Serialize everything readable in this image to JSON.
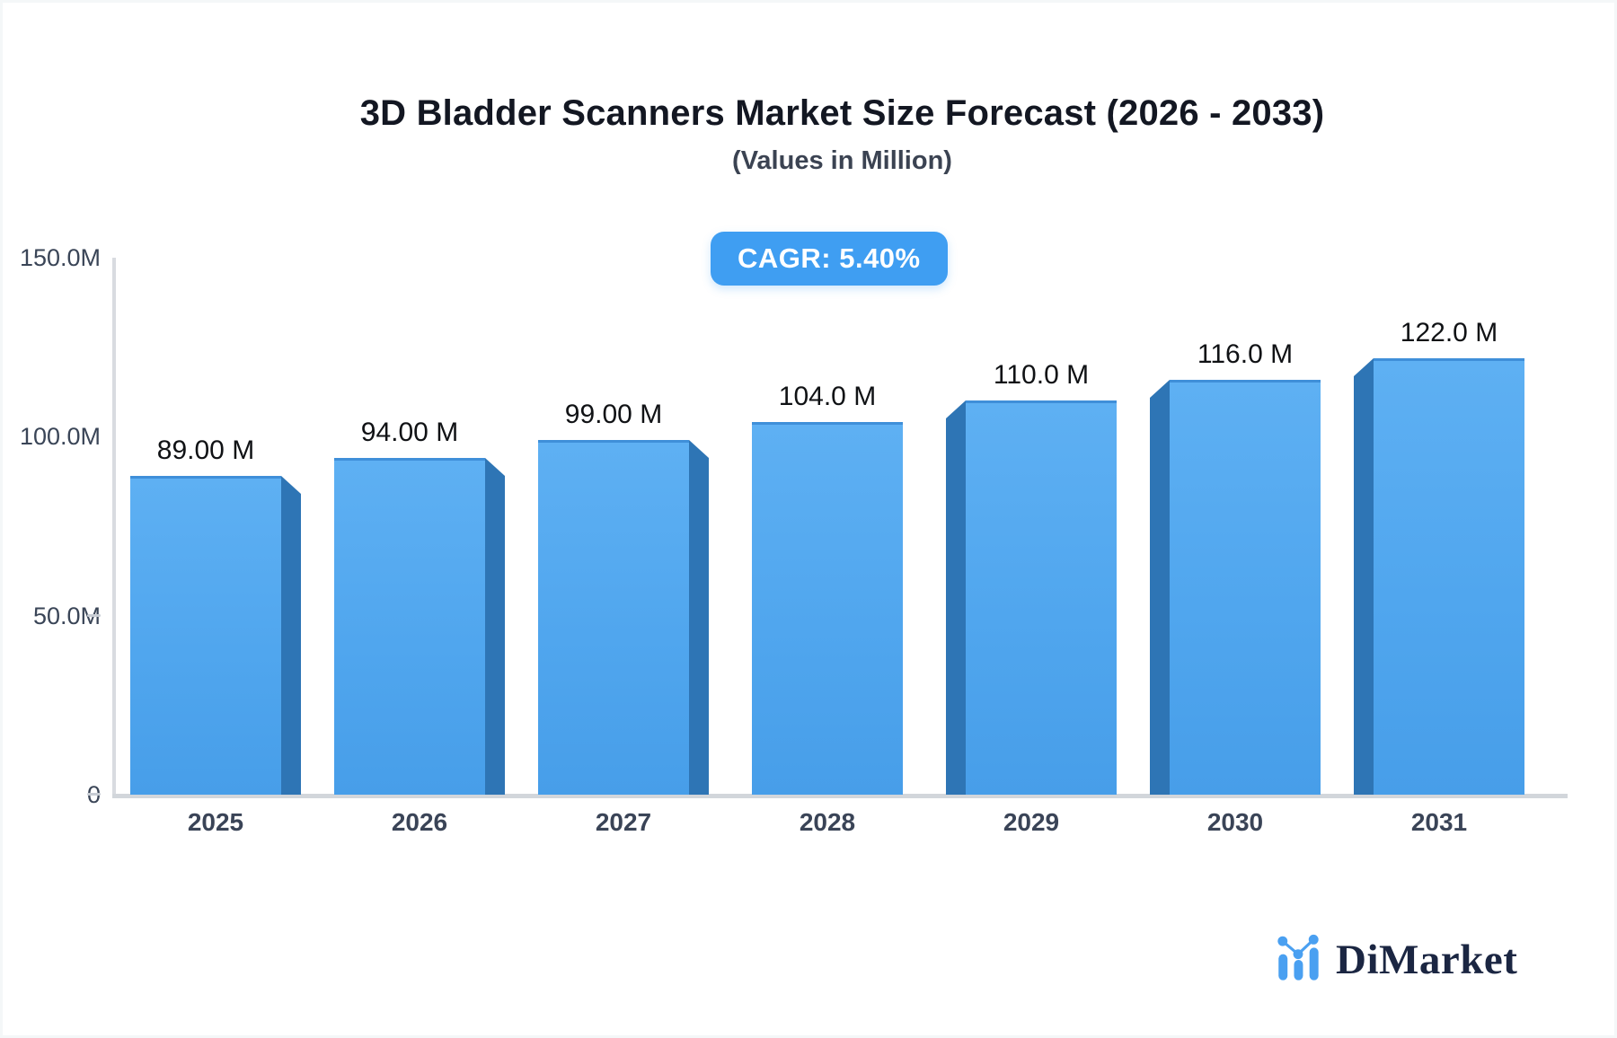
{
  "header": {
    "title": "3D Bladder Scanners Market Size Forecast (2026 - 2033)",
    "subtitle": "(Values in Million)"
  },
  "badge": {
    "label": "CAGR: 5.40%",
    "bg_color": "#3f9ef2",
    "text_color": "#ffffff"
  },
  "logo": {
    "text": "DiMarket",
    "icon": "mini-bar-chart-logo-icon",
    "text_color": "#1b2642",
    "icon_color": "#4aa0f1"
  },
  "chart_data": {
    "type": "bar",
    "title": "3D Bladder Scanners Market Size Forecast (2026 - 2033)",
    "subtitle": "(Values in Million)",
    "categories": [
      "2025",
      "2026",
      "2027",
      "2028",
      "2029",
      "2030",
      "2031"
    ],
    "values": [
      89,
      94,
      99,
      104,
      110,
      116,
      122
    ],
    "bar_labels": [
      "89.00 M",
      "94.00 M",
      "99.00 M",
      "104.0 M",
      "110.0 M",
      "116.0 M",
      "122.0 M"
    ],
    "ylim": [
      0,
      150
    ],
    "y_ticks": [
      {
        "label": "150.0M",
        "value": 150,
        "dash": false
      },
      {
        "label": "100.0M",
        "value": 100,
        "dash": false
      },
      {
        "label": "50.0M",
        "value": 50,
        "dash": true
      },
      {
        "label": "0",
        "value": 0,
        "dash": true
      }
    ],
    "grid": false,
    "legend": "none",
    "bar_front_color": "#54a7ee",
    "bar_side_color": "#2e75b5",
    "axis_color": "#d5d9de",
    "tick_text_color": "#3a4557",
    "value_label_color": "#101215",
    "effect": "3d-bevel, side faces toward chart center"
  }
}
